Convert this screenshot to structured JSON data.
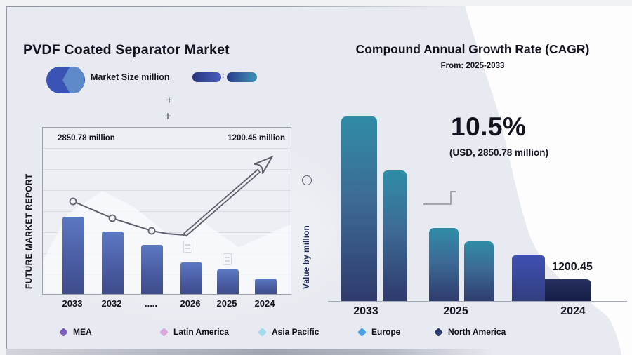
{
  "header": {
    "left_title": "PVDF Coated Separator Market",
    "market_size_label": "Market Size million",
    "right_title": "Compound Annual Growth Rate (CAGR)",
    "right_subtitle": "From: 2025-2033"
  },
  "icons": {
    "plus": "+",
    "colon": ":"
  },
  "left_chart": {
    "watermark_text": "FUTURE MARKET REPORT",
    "ylabel": "Value by million",
    "max_label": "2850.78 million",
    "min_label": "1200.45 million"
  },
  "cagr": {
    "value": "10.5%",
    "usd_note": "(USD, 2850.78 million)",
    "end_value_label": "1200.45"
  },
  "legend": {
    "items": [
      {
        "label": "MEA",
        "color": "#7b5cb8"
      },
      {
        "label": "Latin America",
        "color": "#d9a9de"
      },
      {
        "label": "Asia Pacific",
        "color": "#a5daee"
      },
      {
        "label": "Europe",
        "color": "#4aa2e6"
      },
      {
        "label": "North America",
        "color": "#2c3a6b"
      }
    ]
  },
  "colors": {
    "background": "#e8eaf1",
    "bar_blue_top": "#5c79c3",
    "bar_blue_bottom": "#3e4c8b",
    "bar_teal_top": "#2f8ca7",
    "bar_navy_bottom": "#2e3a6b",
    "bar_royal": "#3e50b2",
    "bar_dark_navy": "#131b45"
  },
  "chart_data": [
    {
      "type": "bar",
      "title": "PVDF Coated Separator Market",
      "subtitle": "Market Size million",
      "categories": [
        "2033",
        "2032",
        ".....",
        "2026",
        "2025",
        "2024"
      ],
      "values": [
        2850.78,
        2310,
        1815,
        1165,
        905,
        570
      ],
      "ylabel": "Value by million",
      "annotations": [
        "2850.78 million",
        "1200.45 million"
      ],
      "grid": true,
      "note": "decorative descending bars with trend line markers and an upward arrow; only 2850.78 and 1200.45 are labeled values"
    },
    {
      "type": "bar",
      "title": "Compound Annual Growth Rate (CAGR)",
      "subtitle": "From: 2025-2033",
      "cagr": "10.5%",
      "groups": [
        {
          "category": "2033",
          "values": [
            2850.78,
            2020
          ]
        },
        {
          "category": "2025",
          "values": [
            1140,
            940
          ]
        },
        {
          "category": "2024",
          "values": [
            720,
            355
          ]
        }
      ],
      "annotations": [
        "10.5%",
        "(USD, 2850.78 million)",
        "1200.45"
      ],
      "legend": [
        "MEA",
        "Latin America",
        "Asia Pacific",
        "Europe",
        "North America"
      ],
      "legend_position": "bottom"
    }
  ]
}
